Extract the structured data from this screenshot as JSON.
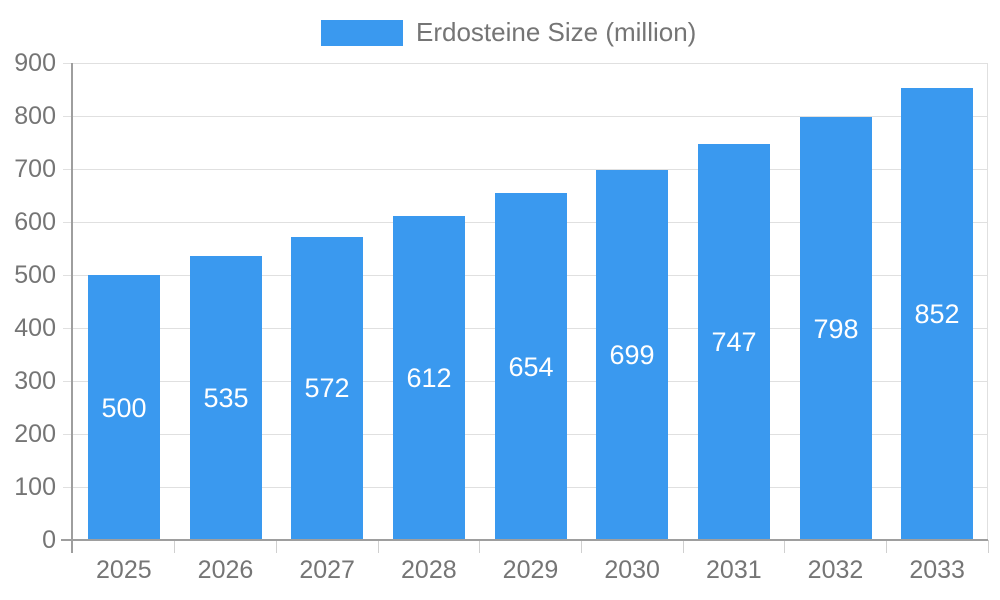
{
  "chart_data": {
    "type": "bar",
    "title": "",
    "legend": "Erdosteine Size (million)",
    "legend_position": "top",
    "categories": [
      "2025",
      "2026",
      "2027",
      "2028",
      "2029",
      "2030",
      "2031",
      "2032",
      "2033"
    ],
    "values": [
      500,
      535,
      572,
      612,
      654,
      699,
      747,
      798,
      852
    ],
    "xlabel": "",
    "ylabel": "",
    "ylim": [
      0,
      900
    ],
    "yticks": [
      0,
      100,
      200,
      300,
      400,
      500,
      600,
      700,
      800,
      900
    ],
    "grid": true,
    "bar_color": "#3A99EF",
    "value_label_color": "#ffffff",
    "axis_text_color": "#757575",
    "grid_color": "#e0e0e0",
    "tick_color": "#d0d0d0",
    "axis_line_color": "#9e9e9e"
  }
}
